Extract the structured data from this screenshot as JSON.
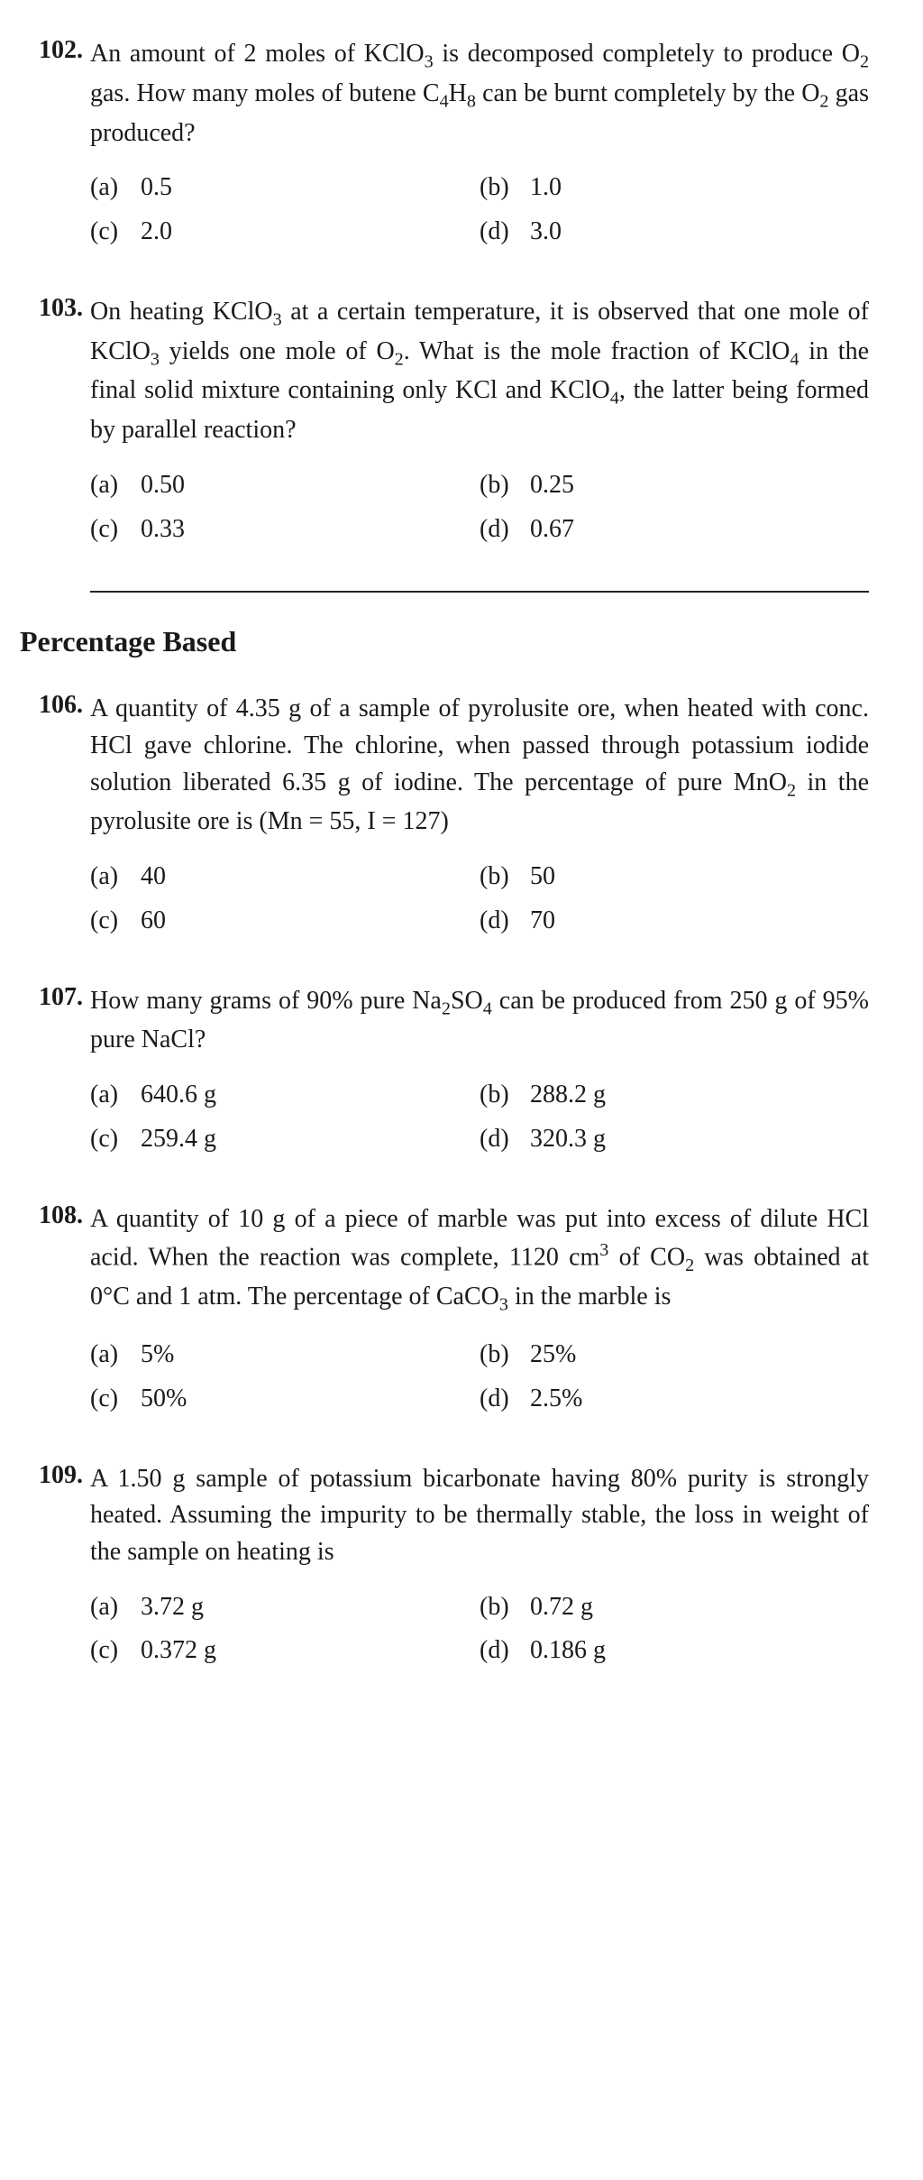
{
  "section_heading": "Percentage Based",
  "questions": [
    {
      "number": "102.",
      "text": "An amount of 2 moles of KClO<sub>3</sub> is decomposed completely to produce O<sub>2</sub> gas. How many moles of butene C<sub>4</sub>H<sub>8</sub> can be burnt completely by the O<sub>2</sub> gas produced?",
      "options": [
        {
          "label": "(a)",
          "value": "0.5"
        },
        {
          "label": "(b)",
          "value": "1.0"
        },
        {
          "label": "(c)",
          "value": "2.0"
        },
        {
          "label": "(d)",
          "value": "3.0"
        }
      ]
    },
    {
      "number": "103.",
      "text": "On heating KClO<sub>3</sub> at a certain temperature, it is observed that one mole of KClO<sub>3</sub> yields one mole of O<sub>2</sub>. What is the mole fraction of KClO<sub>4</sub> in the final solid mixture containing only KCl and KClO<sub>4</sub>, the latter being formed by parallel reaction?",
      "options": [
        {
          "label": "(a)",
          "value": "0.50"
        },
        {
          "label": "(b)",
          "value": "0.25"
        },
        {
          "label": "(c)",
          "value": "0.33"
        },
        {
          "label": "(d)",
          "value": "0.67"
        }
      ]
    },
    {
      "number": "106.",
      "text": "A quantity of 4.35 g of a sample of pyrolusite ore, when heated with conc. HCl gave chlorine. The chlorine, when passed through potassium iodide solution liberated 6.35 g of iodine. The percentage of pure MnO<sub>2</sub> in the pyrolusite ore is (Mn = 55, I = 127)",
      "options": [
        {
          "label": "(a)",
          "value": "40"
        },
        {
          "label": "(b)",
          "value": "50"
        },
        {
          "label": "(c)",
          "value": "60"
        },
        {
          "label": "(d)",
          "value": "70"
        }
      ]
    },
    {
      "number": "107.",
      "text": "How many grams of 90% pure Na<sub>2</sub>SO<sub>4</sub> can be produced from 250 g of 95% pure NaCl?",
      "options": [
        {
          "label": "(a)",
          "value": "640.6 g"
        },
        {
          "label": "(b)",
          "value": "288.2 g"
        },
        {
          "label": "(c)",
          "value": "259.4 g"
        },
        {
          "label": "(d)",
          "value": "320.3 g"
        }
      ]
    },
    {
      "number": "108.",
      "text": "A quantity of 10 g of a piece of marble was put into excess of dilute HCl acid. When the reaction was complete, 1120 cm<sup>3</sup> of CO<sub>2</sub> was obtained at 0°C and 1 atm. The percentage of CaCO<sub>3</sub> in the marble is",
      "options": [
        {
          "label": "(a)",
          "value": "5%"
        },
        {
          "label": "(b)",
          "value": "25%"
        },
        {
          "label": "(c)",
          "value": "50%"
        },
        {
          "label": "(d)",
          "value": "2.5%"
        }
      ]
    },
    {
      "number": "109.",
      "text": "A 1.50 g sample of potassium bicarbonate having 80% purity is strongly heated. Assuming the impurity to be thermally stable, the loss in weight of the sample on heating is",
      "options": [
        {
          "label": "(a)",
          "value": "3.72 g"
        },
        {
          "label": "(b)",
          "value": "0.72 g"
        },
        {
          "label": "(c)",
          "value": "0.372 g"
        },
        {
          "label": "(d)",
          "value": "0.186 g"
        }
      ]
    }
  ]
}
